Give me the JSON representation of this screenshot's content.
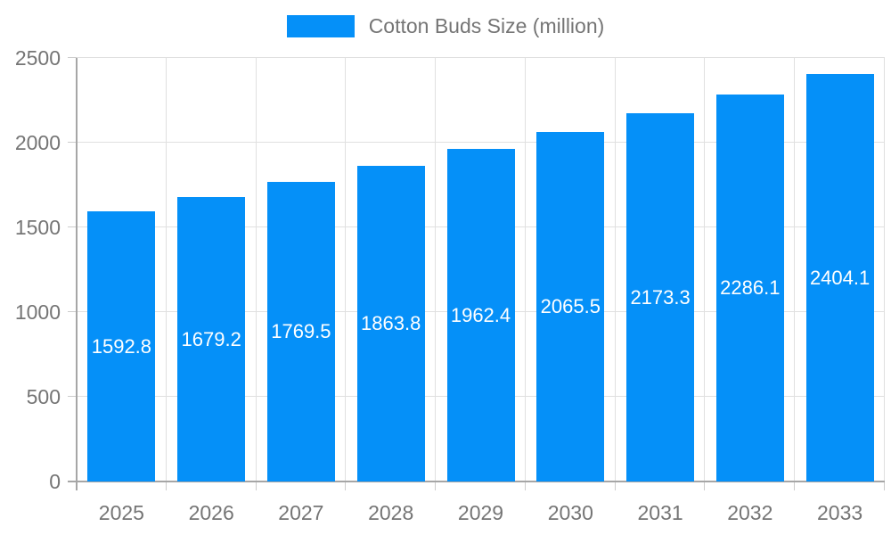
{
  "legend": {
    "label": "Cotton Buds Size (million)"
  },
  "chart_data": {
    "type": "bar",
    "title": "",
    "series_name": "Cotton Buds Size (million)",
    "categories": [
      "2025",
      "2026",
      "2027",
      "2028",
      "2029",
      "2030",
      "2031",
      "2032",
      "2033"
    ],
    "values": [
      1592.8,
      1679.2,
      1769.5,
      1863.8,
      1962.4,
      2065.5,
      2173.3,
      2286.1,
      2404.1
    ],
    "xlabel": "",
    "ylabel": "",
    "ylim": [
      0,
      2500
    ],
    "yticks": [
      0,
      500,
      1000,
      1500,
      2000,
      2500
    ],
    "grid": true,
    "legend_position": "top",
    "bar_color": "#0590f8",
    "value_label_color": "#ffffff",
    "tick_label_color": "#757575",
    "gridline_color": "#e0e0e0",
    "axis_color": "#a6a6a6"
  }
}
